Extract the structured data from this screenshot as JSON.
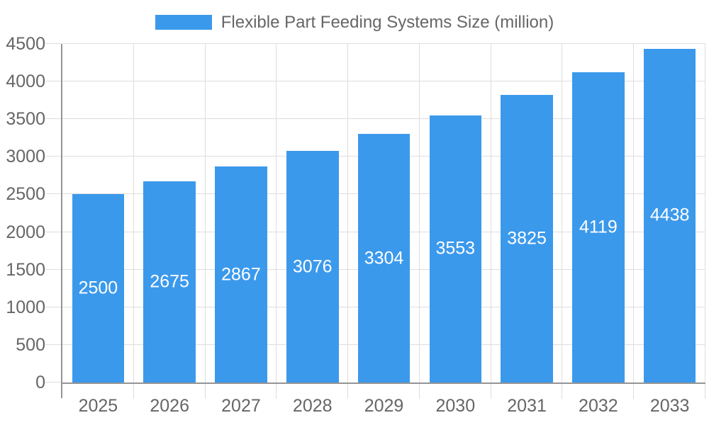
{
  "colors": {
    "bar": "#3B99EC",
    "grid": "#DDDDDD",
    "tick": "#DDDDDD",
    "axis": "#949494",
    "axis_text": "#666666",
    "legend_text": "#666666",
    "value_text": "#FFFFFF",
    "background": "#FFFFFF"
  },
  "chart_data": {
    "type": "bar",
    "title": "Flexible Part Feeding Systems Size (million)",
    "legend": {
      "label": "Flexible Part Feeding Systems Size (million)",
      "position": "top"
    },
    "categories": [
      "2025",
      "2026",
      "2027",
      "2028",
      "2029",
      "2030",
      "2031",
      "2032",
      "2033"
    ],
    "values": [
      2500,
      2675,
      2867,
      3076,
      3304,
      3553,
      3825,
      4119,
      4438
    ],
    "value_labels_shown": true,
    "xlabel": "",
    "ylabel": "",
    "ylim": [
      0,
      4500
    ],
    "ytick_step": 500,
    "yticks": [
      0,
      500,
      1000,
      1500,
      2000,
      2500,
      3000,
      3500,
      4000,
      4500
    ],
    "grid": true
  }
}
